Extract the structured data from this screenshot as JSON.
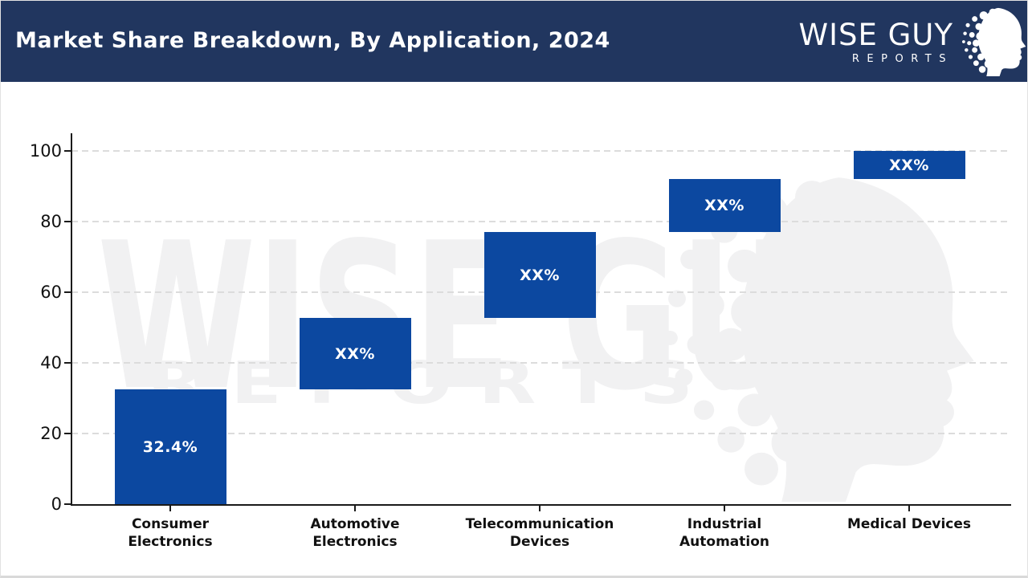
{
  "header": {
    "title": "Market Share Breakdown, By Application, 2024",
    "logo": {
      "line1": "WISE GUY",
      "line2": "REPORTS"
    }
  },
  "watermark": {
    "line1": "WISE GUY",
    "line2": "R E P O R T S"
  },
  "colors": {
    "header_bg": "#21365f",
    "bar": "#0c48a0",
    "grid": "#dcdcdc",
    "watermark": "#f1f1f2"
  },
  "chart_data": {
    "type": "bar",
    "subtype": "waterfall",
    "title": "Market Share Breakdown, By Application, 2024",
    "categories": [
      "Consumer\nElectronics",
      "Automotive\nElectronics",
      "Telecommunication\nDevices",
      "Industrial\nAutomation",
      "Medical Devices"
    ],
    "values": [
      32.4,
      20.3,
      24.3,
      15.0,
      8.0
    ],
    "segments": [
      {
        "start": 0,
        "end": 32.4,
        "label": "32.4%"
      },
      {
        "start": 32.4,
        "end": 52.7,
        "label": "XX%"
      },
      {
        "start": 52.7,
        "end": 77.0,
        "label": "XX%"
      },
      {
        "start": 77.0,
        "end": 92.0,
        "label": "XX%"
      },
      {
        "start": 92.0,
        "end": 100.0,
        "label": "XX%"
      }
    ],
    "xlabel": "",
    "ylabel": "",
    "ylim": [
      0,
      100
    ],
    "yticks": [
      0,
      20,
      40,
      60,
      80,
      100
    ],
    "grid": true,
    "legend": false
  }
}
